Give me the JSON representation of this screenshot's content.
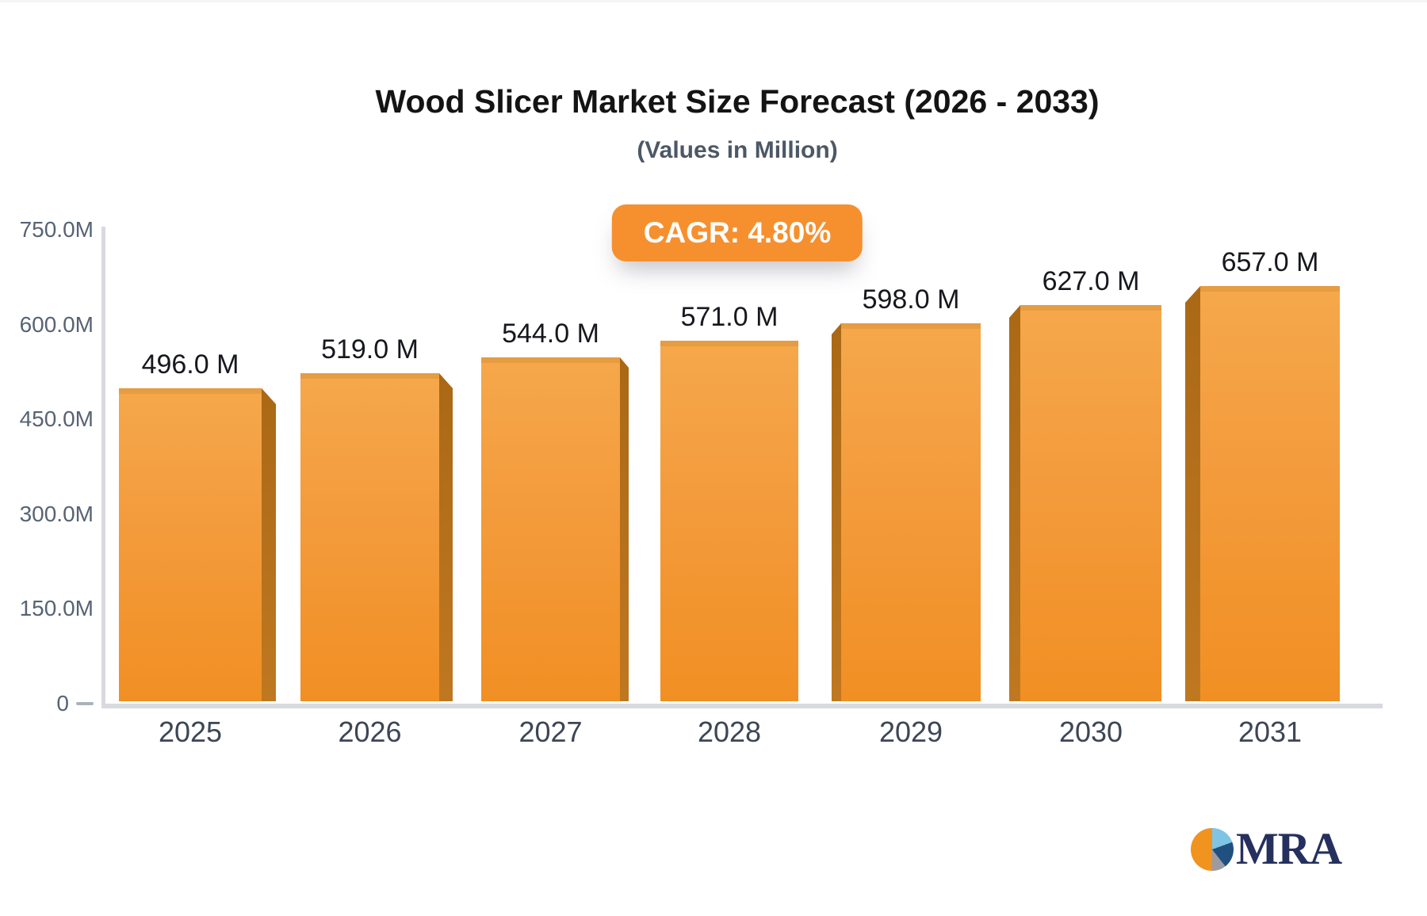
{
  "title": "Wood Slicer Market Size Forecast (2026 - 2033)",
  "subtitle": "(Values in Million)",
  "cagr_badge": "CAGR: 4.80%",
  "chart_data": {
    "type": "bar",
    "categories": [
      "2025",
      "2026",
      "2027",
      "2028",
      "2029",
      "2030",
      "2031"
    ],
    "values": [
      496,
      519,
      544,
      571,
      598,
      627,
      657
    ],
    "bar_labels": [
      "496.0 M",
      "519.0 M",
      "544.0 M",
      "571.0 M",
      "598.0 M",
      "627.0 M",
      "657.0 M"
    ],
    "y_tick_values": [
      750,
      600,
      450,
      300,
      150,
      0
    ],
    "y_tick_labels": [
      "750.0M",
      "600.0M",
      "450.0M",
      "300.0M",
      "150.0M",
      "0"
    ],
    "ylim": [
      0,
      750
    ],
    "unit": "Million",
    "grid": false,
    "legend": false,
    "title": "Wood Slicer Market Size Forecast (2026 - 2033)",
    "colors": {
      "bar_top": "#f5a84b",
      "bar_bottom": "#f18f23",
      "bar_side": "#b5701c",
      "badge": "#f6902f",
      "axis": "#d9dadf"
    }
  },
  "logo": {
    "text": "MRA"
  }
}
